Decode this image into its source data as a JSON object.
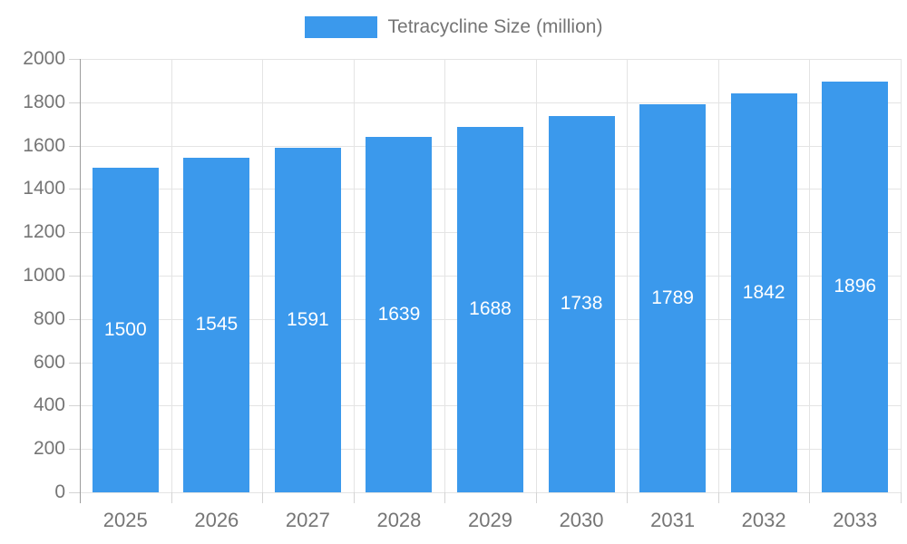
{
  "chart_data": {
    "type": "bar",
    "title": "",
    "categories": [
      "2025",
      "2026",
      "2027",
      "2028",
      "2029",
      "2030",
      "2031",
      "2032",
      "2033"
    ],
    "values": [
      1500,
      1545,
      1591,
      1639,
      1688,
      1738,
      1789,
      1842,
      1896
    ],
    "series_name": "Tetracycline Size (million)",
    "xlabel": "",
    "ylabel": "",
    "ylim": [
      0,
      2000
    ],
    "ytick_step": 200,
    "ytick_labels": [
      "0",
      "200",
      "400",
      "600",
      "800",
      "1000",
      "1200",
      "1400",
      "1600",
      "1800",
      "2000"
    ],
    "grid": "on",
    "legend_position": "top-center",
    "bar_color": "#3b99ec",
    "grid_color": "#e4e4e4",
    "axis_color": "#9c9c9c",
    "tick_color": "#d4d4d4",
    "text_color": "#757575",
    "bar_label_color": "#ffffff"
  },
  "legend": {
    "label": "Tetracycline Size (million)"
  }
}
